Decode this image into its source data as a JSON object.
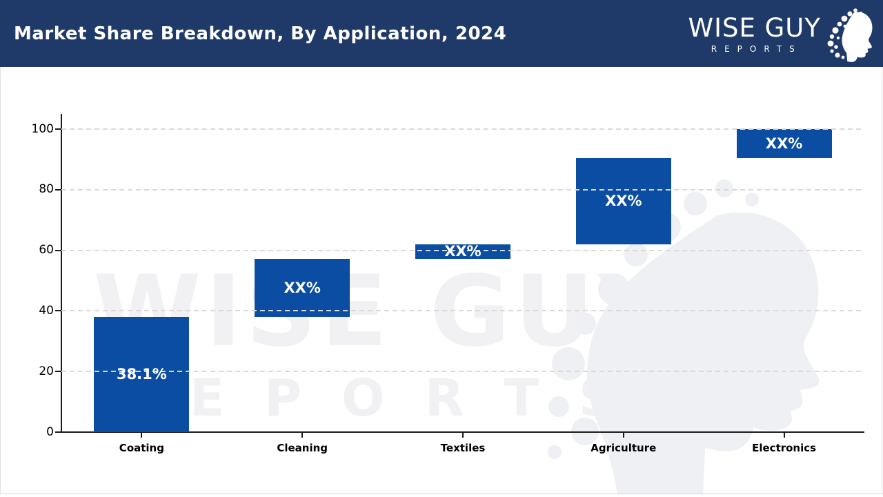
{
  "header": {
    "title": "Market Share Breakdown, By Application, 2024",
    "bg_color": "#1f3a68",
    "logo": {
      "line1": "WISE GUY",
      "line2": "REPORTS"
    }
  },
  "watermark": {
    "line1": "WISE GUY",
    "line2": "R E P O R T S"
  },
  "chart_data": {
    "type": "bar",
    "subtype": "waterfall",
    "title": "Market Share Breakdown, By Application, 2024",
    "xlabel": "",
    "ylabel": "",
    "categories": [
      "Coating",
      "Cleaning",
      "Textiles",
      "Agriculture",
      "Electronics"
    ],
    "segments": [
      {
        "category": "Coating",
        "start": 0,
        "end": 38.1,
        "label": "38.1%"
      },
      {
        "category": "Cleaning",
        "start": 38.1,
        "end": 57.2,
        "label": "XX%"
      },
      {
        "category": "Textiles",
        "start": 57.2,
        "end": 62.0,
        "label": "XX%"
      },
      {
        "category": "Agriculture",
        "start": 62.0,
        "end": 90.5,
        "label": "XX%"
      },
      {
        "category": "Electronics",
        "start": 90.5,
        "end": 100,
        "label": "XX%"
      }
    ],
    "yticks": [
      0,
      20,
      40,
      60,
      80,
      100
    ],
    "ylim": [
      0,
      105
    ],
    "bar_color": "#0b4da2",
    "label_color": "#ffffff",
    "grid": "horizontal dashed, drawn above bars",
    "grid_color": "#d9d9d9",
    "legend_position": "none"
  }
}
